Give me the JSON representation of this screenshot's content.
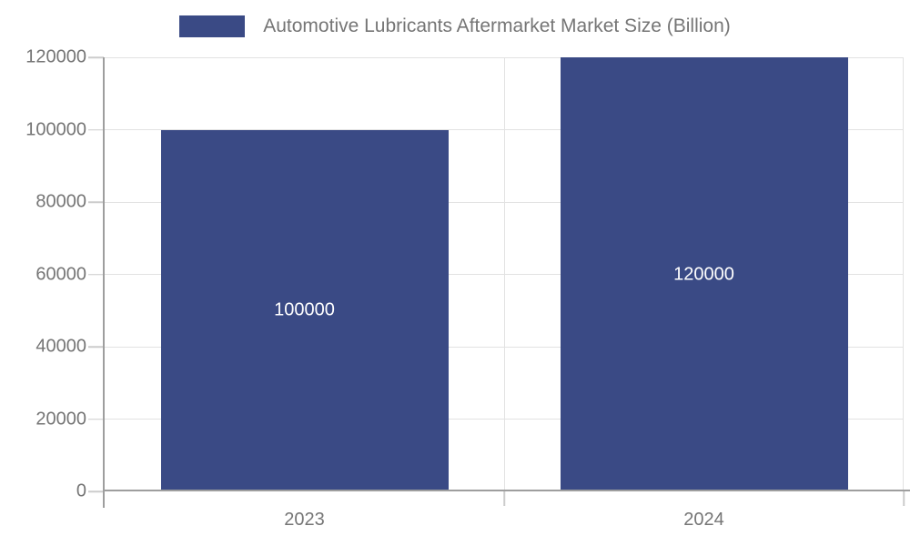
{
  "chart_data": {
    "type": "bar",
    "title": "Automotive Lubricants Aftermarket Market Size (Billion)",
    "categories": [
      "2023",
      "2024"
    ],
    "series": [
      {
        "name": "Automotive Lubricants Aftermarket Market Size (Billion)",
        "values": [
          100000,
          120000
        ]
      }
    ],
    "bar_value_labels": [
      "100000",
      "120000"
    ],
    "xlabel": "",
    "ylabel": "",
    "ylim": [
      0,
      120000
    ],
    "y_ticks": [
      0,
      20000,
      40000,
      60000,
      80000,
      100000,
      120000
    ],
    "y_tick_labels": [
      "0",
      "20000",
      "40000",
      "60000",
      "80000",
      "100000",
      "120000"
    ],
    "grid": true,
    "legend_position": "top-center",
    "colors": {
      "bar": "#3a4a85",
      "gridline": "#e2e2e2",
      "axis_line": "#9e9e9e",
      "tick_line": "#cccccc",
      "label_text": "#757575",
      "bar_label_text": "#ffffff",
      "background": "#ffffff"
    }
  }
}
